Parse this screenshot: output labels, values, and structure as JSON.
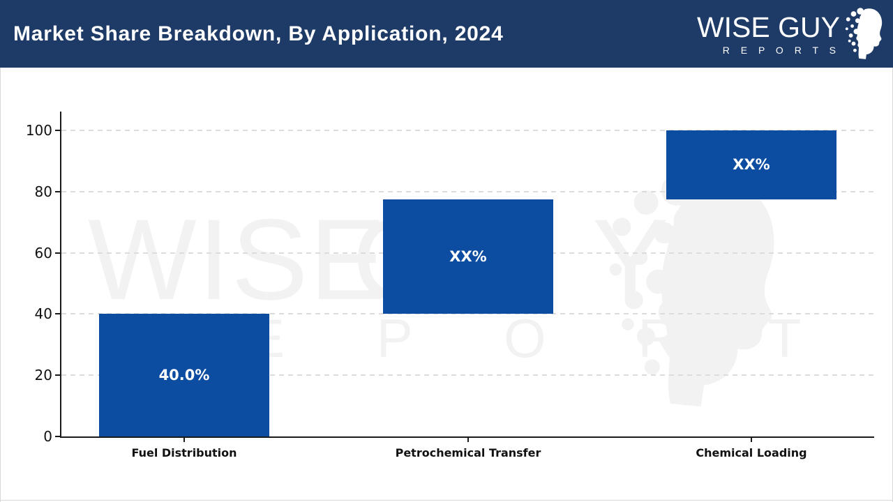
{
  "header": {
    "title": "Market Share Breakdown, By Application, 2024",
    "logo": {
      "name": "WISE GUY",
      "sub": "R E P O R T S"
    }
  },
  "watermark": {
    "word1": "WISE",
    "word2": "GUY",
    "word3": "R E P O R T S"
  },
  "chart_data": {
    "type": "bar",
    "variant": "floating-segment-breakdown",
    "title": "Market Share Breakdown, By Application, 2024",
    "categories": [
      "Fuel Distribution",
      "Petrochemical Transfer",
      "Chemical Loading"
    ],
    "segments": [
      {
        "category": "Fuel Distribution",
        "start": 0,
        "end": 40,
        "label": "40.0%"
      },
      {
        "category": "Petrochemical Transfer",
        "start": 40,
        "end": 77.5,
        "label": "XX%"
      },
      {
        "category": "Chemical Loading",
        "start": 77.5,
        "end": 100,
        "label": "XX%"
      }
    ],
    "ylim": [
      0,
      100
    ],
    "yticks": [
      0,
      20,
      40,
      60,
      80,
      100
    ],
    "grid": "horizontal-dashed",
    "legend": "none",
    "bar_color": "#0c4da2",
    "bar_label_color": "#ffffff",
    "axis_color": "#1a1a1a",
    "grid_color": "#dcdcdc"
  },
  "colors": {
    "header_bg": "#1e3a67",
    "watermark": "#f2f2f2",
    "background": "#ffffff"
  }
}
